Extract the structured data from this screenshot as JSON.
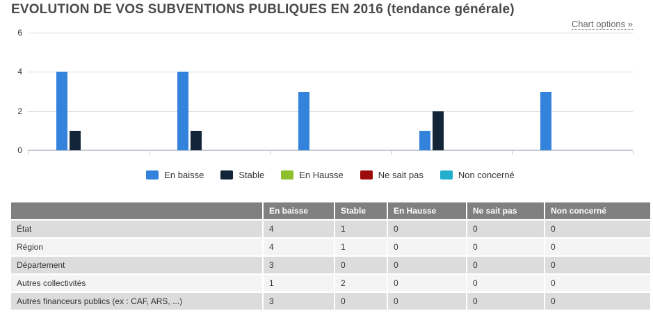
{
  "header": {
    "chart_options_label": "Chart options »"
  },
  "colors": {
    "en_baisse": "#3382dc",
    "stable": "#122539",
    "en_hausse": "#8cbf2b",
    "ne_sait_pas": "#9c0c0c",
    "non_concerne": "#23aecd",
    "table_header_bg": "#808080",
    "row_dark": "#dcdcdc",
    "row_light": "#f4f4f4",
    "title_text": "#4a4a4a"
  },
  "chart_data": {
    "type": "bar",
    "title": "EVOLUTION DE VOS SUBVENTIONS PUBLIQUES EN 2016 (tendance générale)",
    "categories": [
      "État",
      "Région",
      "Département",
      "Autres collectivités",
      "Autres financeurs publics (ex : CAF, ARS, ...)"
    ],
    "series": [
      {
        "name": "En baisse",
        "color": "#3382dc",
        "values": [
          4,
          4,
          3,
          1,
          3
        ]
      },
      {
        "name": "Stable",
        "color": "#122539",
        "values": [
          1,
          1,
          0,
          2,
          0
        ]
      },
      {
        "name": "En Hausse",
        "color": "#8cbf2b",
        "values": [
          0,
          0,
          0,
          0,
          0
        ]
      },
      {
        "name": "Ne sait pas",
        "color": "#9c0c0c",
        "values": [
          0,
          0,
          0,
          0,
          0
        ]
      },
      {
        "name": "Non concerné",
        "color": "#23aecd",
        "values": [
          0,
          0,
          0,
          0,
          0
        ]
      }
    ],
    "xlabel": "",
    "ylabel": "",
    "yticks": [
      0,
      2,
      4,
      6
    ],
    "ylim": [
      0,
      6
    ],
    "grid": true,
    "x_tick_labels_visible": false,
    "legend_position": "bottom"
  },
  "table": {
    "columns": [
      "",
      "En baisse",
      "Stable",
      "En Hausse",
      "Ne sait pas",
      "Non concerné"
    ],
    "rows": [
      {
        "label": "État",
        "values": [
          4,
          1,
          0,
          0,
          0
        ]
      },
      {
        "label": "Région",
        "values": [
          4,
          1,
          0,
          0,
          0
        ]
      },
      {
        "label": "Département",
        "values": [
          3,
          0,
          0,
          0,
          0
        ]
      },
      {
        "label": "Autres collectivités",
        "values": [
          1,
          2,
          0,
          0,
          0
        ]
      },
      {
        "label": "Autres financeurs publics (ex : CAF, ARS, ...)",
        "values": [
          3,
          0,
          0,
          0,
          0
        ]
      }
    ]
  }
}
